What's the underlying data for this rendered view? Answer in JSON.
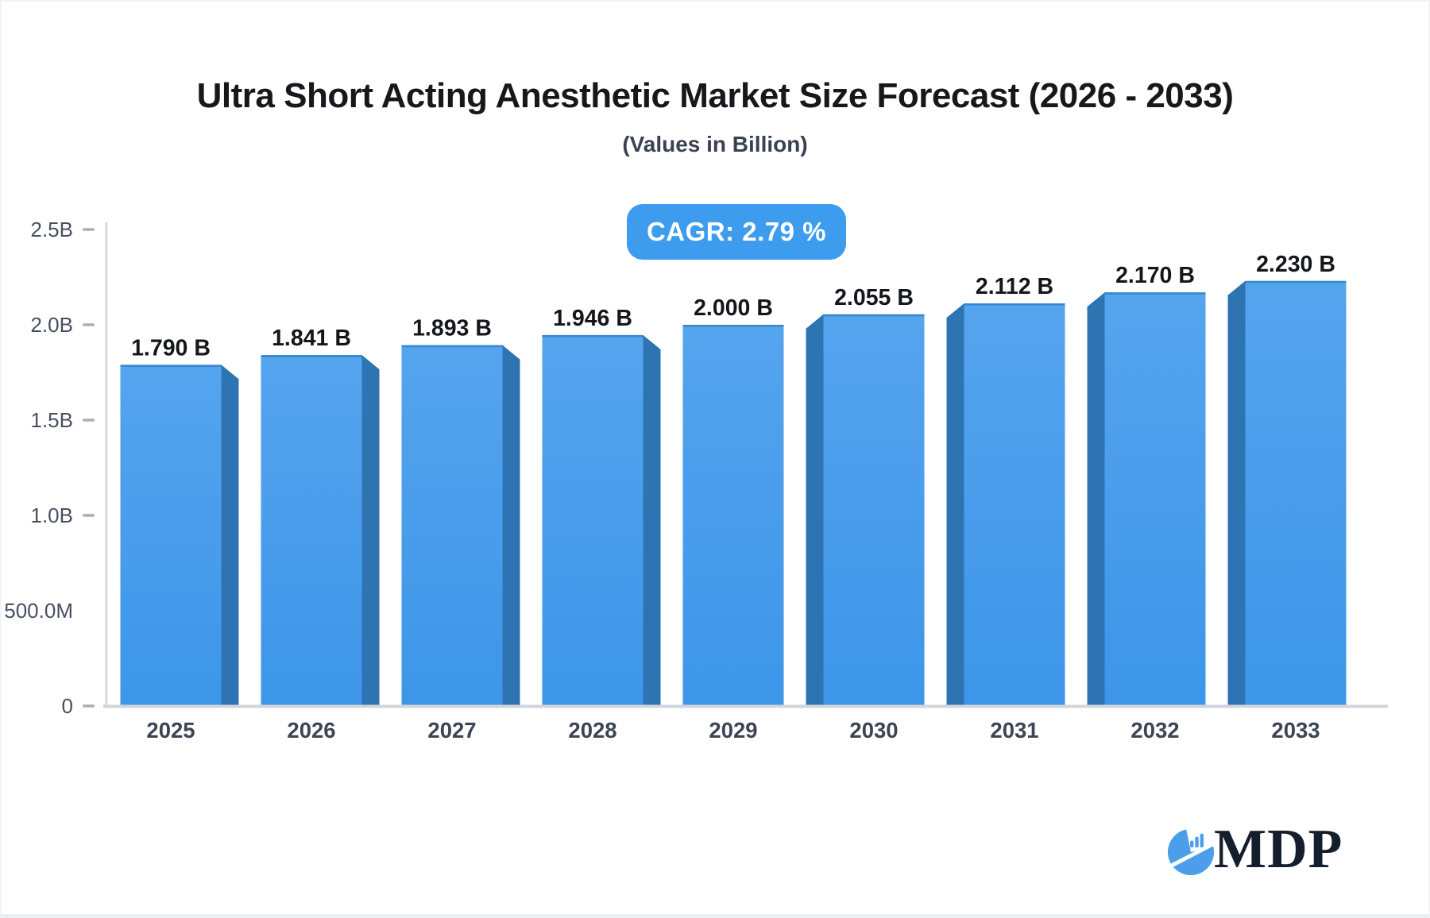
{
  "page": {
    "title": "Ultra Short Acting Anesthetic Market Size Forecast (2026 - 2033)",
    "subtitle": "(Values in Billion)"
  },
  "badge": {
    "label": "CAGR: 2.79 %"
  },
  "chart_data": {
    "type": "bar",
    "title": "Ultra Short Acting Anesthetic Market Size Forecast (2026 - 2033)",
    "subtitle": "(Values in Billion)",
    "xlabel": "",
    "ylabel": "",
    "categories": [
      "2025",
      "2026",
      "2027",
      "2028",
      "2029",
      "2030",
      "2031",
      "2032",
      "2033"
    ],
    "values": [
      1.79,
      1.841,
      1.893,
      1.946,
      2.0,
      2.055,
      2.112,
      2.17,
      2.23
    ],
    "bar_labels": [
      "1.790 B",
      "1.841 B",
      "1.893 B",
      "1.946 B",
      "2.000 B",
      "2.055 B",
      "2.112 B",
      "2.170 B",
      "2.230 B"
    ],
    "ylim": [
      0,
      2.5
    ],
    "grid": false,
    "legend": "none",
    "y_ticks": [
      {
        "label": "2.5B",
        "value": 2.5,
        "dash": true
      },
      {
        "label": "2.0B",
        "value": 2.0,
        "dash": true
      },
      {
        "label": "1.5B",
        "value": 1.5,
        "dash": true
      },
      {
        "label": "1.0B",
        "value": 1.0,
        "dash": true
      },
      {
        "label": "500.0M",
        "value": 0.5,
        "dash": false
      },
      {
        "label": "0",
        "value": 0.0,
        "dash": true
      }
    ],
    "colors": {
      "face_top": "#55A4EE",
      "face_bottom": "#3D96E9",
      "side": "#2E74B3",
      "top_edge": "#3587D0",
      "axis_line": "#DBDDE2",
      "base_line": "#D2D5DB",
      "tick": "#A9AEB8",
      "y_label": "#475061",
      "x_label": "#3D4454",
      "value_label": "#14161B",
      "badge_bg": "#3D9CED",
      "badge_text": "#FFFFFF",
      "logo_blue": "#4C9EEA",
      "logo_text": "#141E2C"
    }
  },
  "logo": {
    "text": "MDP"
  }
}
